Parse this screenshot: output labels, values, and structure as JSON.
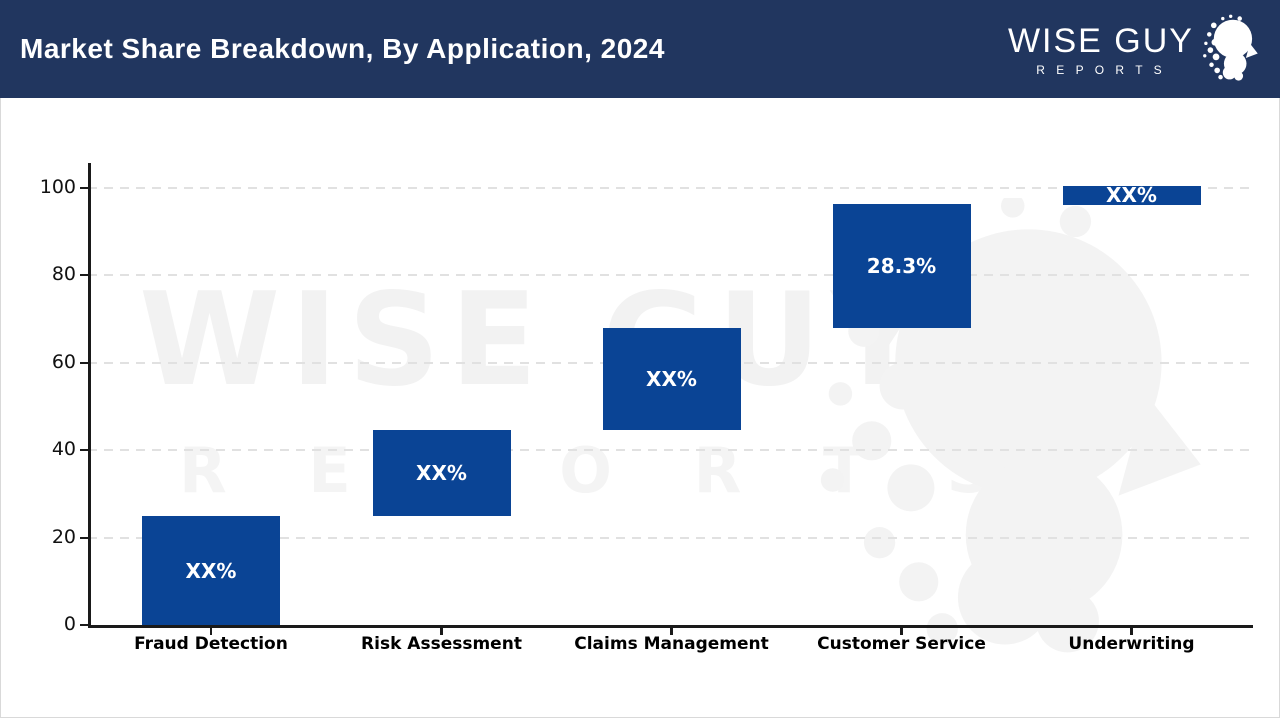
{
  "header": {
    "title": "Market Share Breakdown, By Application, 2024",
    "logo_line1": "WISE GUY",
    "logo_line2": "R E P O R T S"
  },
  "watermark": {
    "line1": "WISE GUY",
    "line2": "R E P O R T S"
  },
  "colors": {
    "header_bg": "#21365f",
    "bar": "#0a4495",
    "bar_label": "#ffffff",
    "axis": "#1a1a1a",
    "grid": "#e1e1e1",
    "tick_label": "#111111",
    "category_label": "#000000",
    "watermark": "#f2f2f2"
  },
  "chart_data": {
    "type": "bar",
    "subtype": "floating-waterfall",
    "title": "Market Share Breakdown, By Application, 2024",
    "xlabel": "",
    "ylabel": "",
    "categories": [
      "Fraud Detection",
      "Risk Assessment",
      "Claims Management",
      "Customer Service",
      "Underwriting"
    ],
    "segments": [
      {
        "category": "Fraud Detection",
        "start": 0.0,
        "end": 24.9,
        "label": "XX%"
      },
      {
        "category": "Risk Assessment",
        "start": 24.9,
        "end": 44.6,
        "label": "XX%"
      },
      {
        "category": "Claims Management",
        "start": 44.6,
        "end": 67.9,
        "label": "XX%"
      },
      {
        "category": "Customer Service",
        "start": 67.9,
        "end": 96.2,
        "label": "28.3%"
      },
      {
        "category": "Underwriting",
        "start": 96.0,
        "end": 100.4,
        "label": "XX%"
      }
    ],
    "yticks": [
      0,
      20,
      40,
      60,
      80,
      100
    ],
    "ylim": [
      0,
      106
    ],
    "grid": "horizontal-dashed",
    "legend": "none"
  }
}
